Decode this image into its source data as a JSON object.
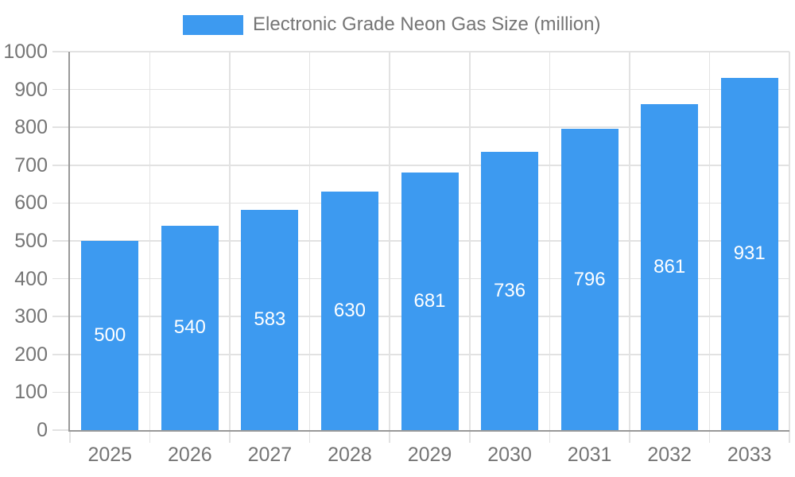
{
  "chart_data": {
    "type": "bar",
    "title": "Electronic Grade Neon Gas Size (million)",
    "legend": [
      "Electronic Grade Neon Gas Size (million)"
    ],
    "legend_position": "top",
    "categories": [
      "2025",
      "2026",
      "2027",
      "2028",
      "2029",
      "2030",
      "2031",
      "2032",
      "2033"
    ],
    "series": [
      {
        "name": "Electronic Grade Neon Gas Size (million)",
        "values": [
          500,
          540,
          583,
          630,
          681,
          736,
          796,
          861,
          931
        ]
      }
    ],
    "value_labels_position": "inside-center",
    "xlabel": "",
    "ylabel": "",
    "ylim": [
      0,
      1000
    ],
    "ytick_step": 100,
    "ytick_labels": [
      "0",
      "100",
      "200",
      "300",
      "400",
      "500",
      "600",
      "700",
      "800",
      "900",
      "1000"
    ],
    "grid": true,
    "colors": {
      "bar": "#3D9AF0",
      "axis_line": "#999999",
      "grid_line": "#E2E2E2",
      "tick_label": "#757575",
      "legend_text": "#757575",
      "value_label": "#FFFFFF",
      "background": "#FFFFFF"
    }
  }
}
